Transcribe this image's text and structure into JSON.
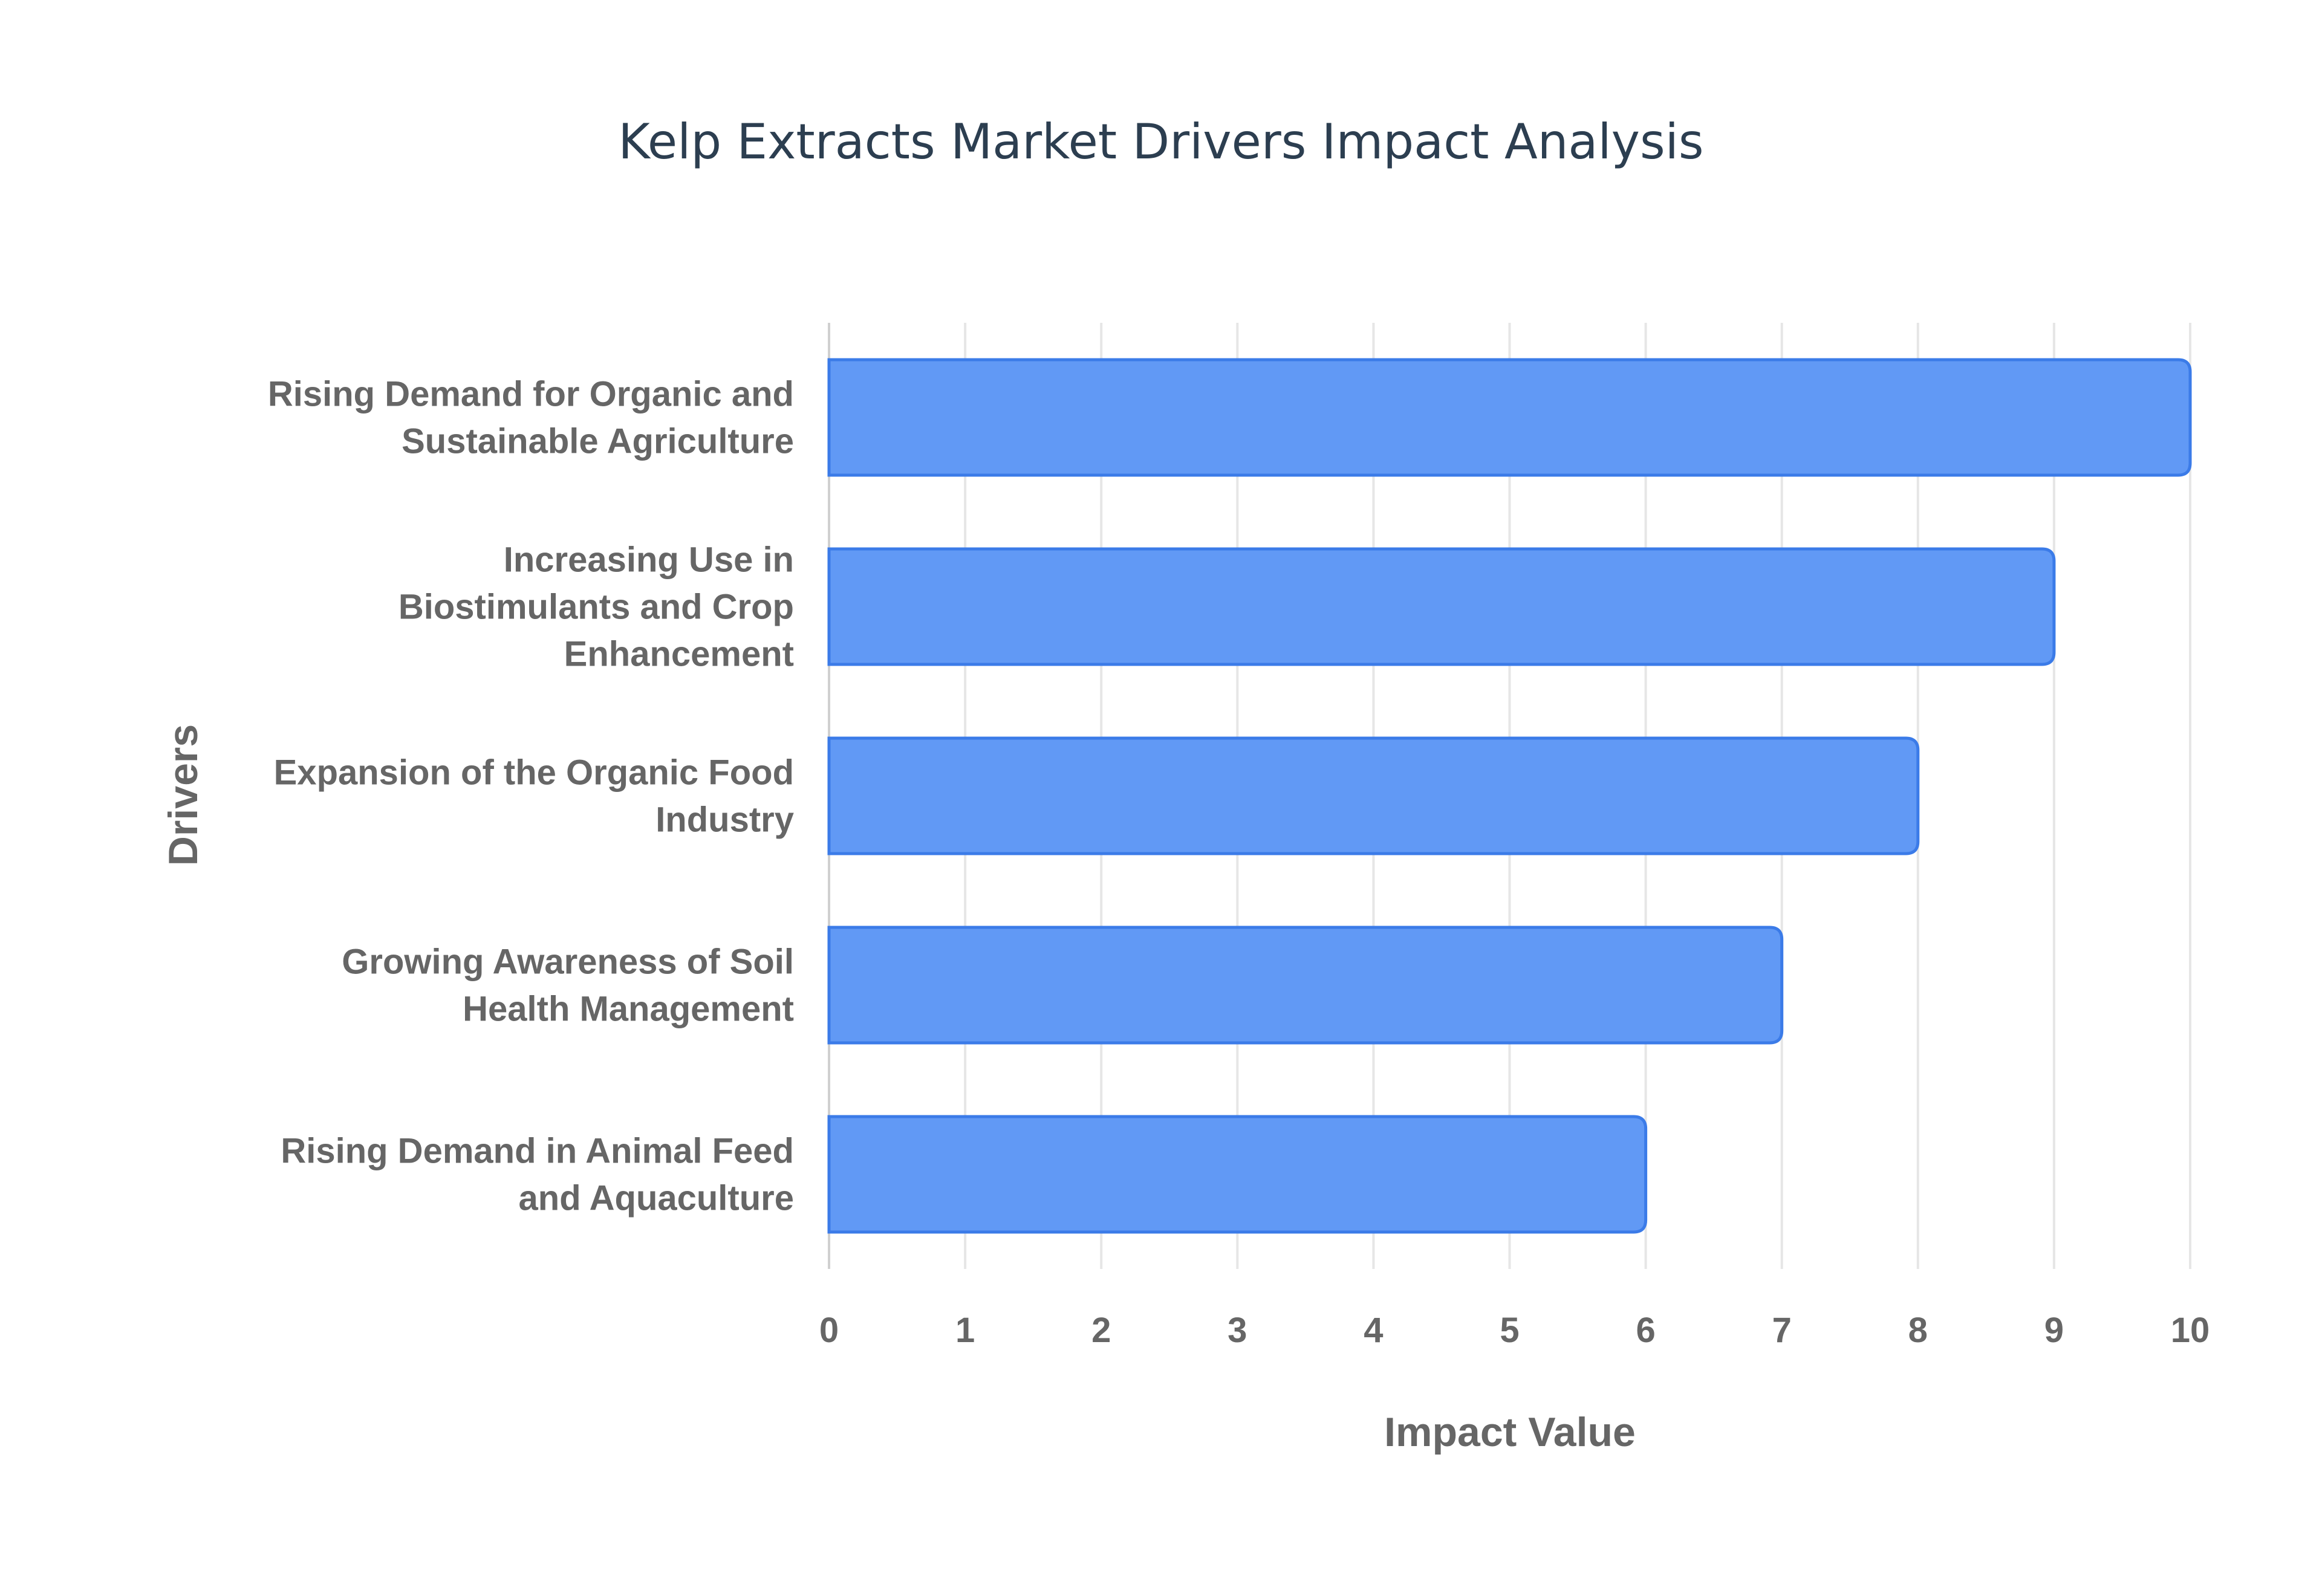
{
  "chart_data": {
    "type": "bar",
    "orientation": "horizontal",
    "title": "Kelp Extracts Market Drivers Impact Analysis",
    "xlabel": "Impact Value",
    "ylabel": "Drivers",
    "categories": [
      [
        "Rising Demand for Organic and",
        "Sustainable Agriculture"
      ],
      [
        "Increasing Use in",
        "Biostimulants and Crop",
        "Enhancement"
      ],
      [
        "Expansion of the Organic Food",
        "Industry"
      ],
      [
        "Growing Awareness of Soil",
        "Health Management"
      ],
      [
        "Rising Demand in Animal Feed",
        "and Aquaculture"
      ]
    ],
    "values": [
      10,
      9,
      8,
      7,
      6
    ],
    "xlim": [
      0,
      10
    ],
    "xticks": [
      "0",
      "1",
      "2",
      "3",
      "4",
      "5",
      "6",
      "7",
      "8",
      "9",
      "10"
    ],
    "grid": true,
    "colors": {
      "bar": "#6199f5",
      "bar_border": "#3b7be8",
      "grid": "#e6e6e6",
      "title": "#2c3e50",
      "text": "#666666"
    }
  }
}
